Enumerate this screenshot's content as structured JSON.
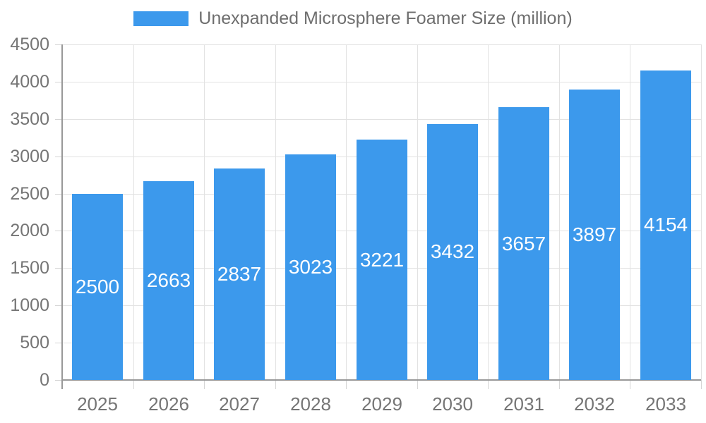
{
  "legend": {
    "label": "Unexpanded Microsphere Foamer Size (million)"
  },
  "chart_data": {
    "type": "bar",
    "title": "",
    "categories": [
      "2025",
      "2026",
      "2027",
      "2028",
      "2029",
      "2030",
      "2031",
      "2032",
      "2033"
    ],
    "values": [
      2500,
      2663,
      2837,
      3023,
      3221,
      3432,
      3657,
      3897,
      4154
    ],
    "series": [
      {
        "name": "Unexpanded Microsphere Foamer Size (million)",
        "values": [
          2500,
          2663,
          2837,
          3023,
          3221,
          3432,
          3657,
          3897,
          4154
        ]
      }
    ],
    "xlabel": "",
    "ylabel": "",
    "ylim": [
      0,
      4500
    ],
    "ytick_step": 500,
    "ytick_labels": [
      "0",
      "500",
      "1000",
      "1500",
      "2000",
      "2500",
      "3000",
      "3500",
      "4000",
      "4500"
    ],
    "grid": true,
    "legend_position": "top",
    "bar_labels_visible": true,
    "colors": {
      "bar": "#3C99EC",
      "bar_label": "#FFFFFF",
      "axis_text": "#757575",
      "legend_text": "#6E6E6E",
      "grid_line": "#E2E2E2",
      "tick_line": "#D5D5D5",
      "axis_line": "#999999",
      "background": "#FFFFFF"
    }
  }
}
